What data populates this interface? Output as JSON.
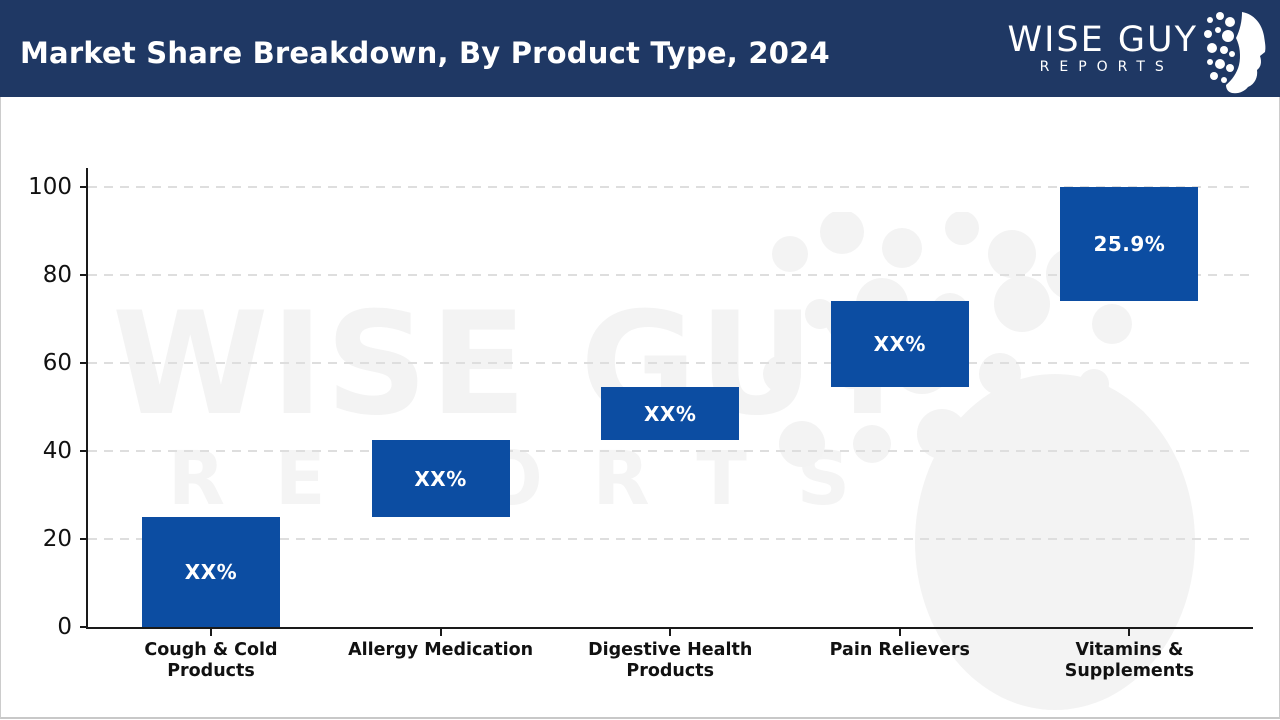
{
  "header": {
    "title": "Market Share Breakdown, By Product Type, 2024",
    "logo": {
      "name": "WISE GUY",
      "subtitle": "REPORTS"
    }
  },
  "watermark": {
    "line1": "WISE GUY",
    "line2": "REPORTS"
  },
  "colors": {
    "header_bg": "#1f3864",
    "bar": "#0c4da2",
    "bar_label": "#ffffff",
    "axis": "#1a1a1a",
    "gridline": "#dedede",
    "watermark": "#f3f3f3"
  },
  "chart_data": {
    "type": "bar",
    "variant": "waterfall-floating",
    "title": "Market Share Breakdown, By Product Type, 2024",
    "xlabel": "",
    "ylabel": "",
    "ylim": [
      0,
      105
    ],
    "yticks": [
      0,
      20,
      40,
      60,
      80,
      100
    ],
    "grid": "horizontal-dashed",
    "legend": "none",
    "bar_color": "#0c4da2",
    "categories": [
      "Cough & Cold Products",
      "Allergy Medication",
      "Digestive Health Products",
      "Pain Relievers",
      "Vitamins & Supplements"
    ],
    "segments": [
      {
        "category": "Cough & Cold Products",
        "category_lines": [
          "Cough & Cold",
          "Products"
        ],
        "start": 0,
        "end": 25.0,
        "value": 25.0,
        "label": "XX%"
      },
      {
        "category": "Allergy Medication",
        "category_lines": [
          "Allergy Medication"
        ],
        "start": 25.0,
        "end": 42.4,
        "value": 17.4,
        "label": "XX%"
      },
      {
        "category": "Digestive Health Products",
        "category_lines": [
          "Digestive Health",
          "Products"
        ],
        "start": 42.4,
        "end": 54.5,
        "value": 12.1,
        "label": "XX%"
      },
      {
        "category": "Pain Relievers",
        "category_lines": [
          "Pain Relievers"
        ],
        "start": 54.5,
        "end": 74.1,
        "value": 19.6,
        "label": "XX%"
      },
      {
        "category": "Vitamins & Supplements",
        "category_lines": [
          "Vitamins &",
          "Supplements"
        ],
        "start": 74.1,
        "end": 100.0,
        "value": 25.9,
        "label": "25.9%"
      }
    ]
  }
}
